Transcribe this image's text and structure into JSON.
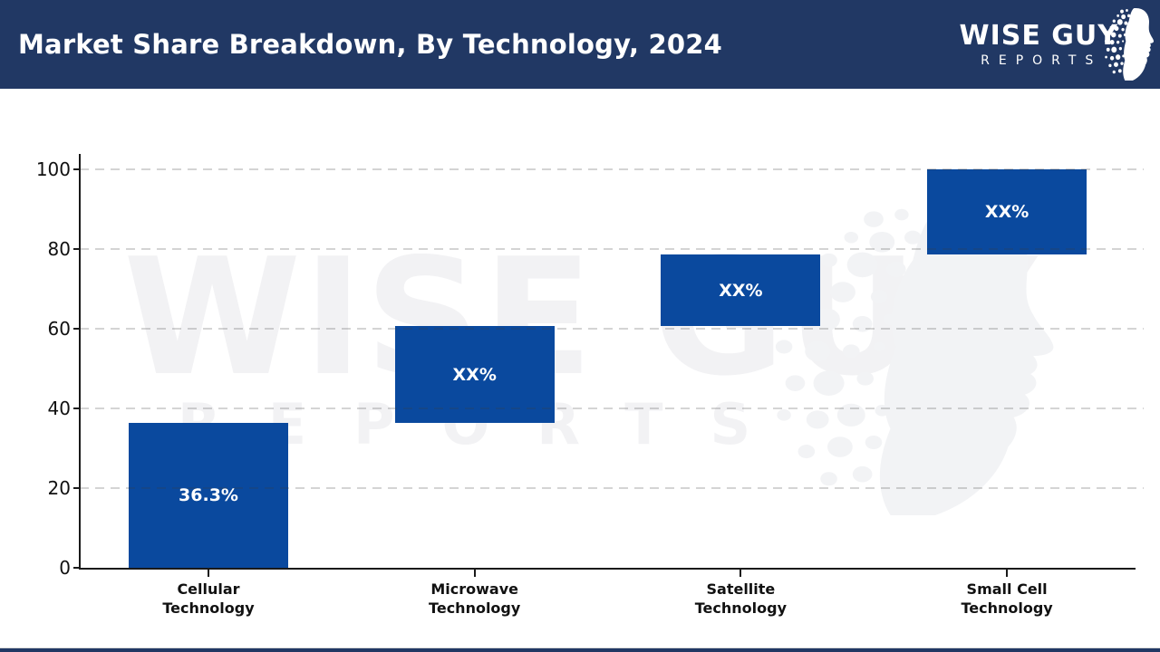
{
  "header": {
    "title": "Market Share Breakdown, By Technology, 2024",
    "logo": {
      "wordmark": "WISE GUY",
      "subtitle": "REPORTS",
      "face_icon": "wiseguy-face-icon"
    }
  },
  "watermark": {
    "wordmark": "WISE GUY",
    "subtitle": "REPORTS",
    "face_icon": "wiseguy-face-watermark-icon"
  },
  "chart_data": {
    "type": "bar",
    "subtype": "waterfall",
    "title": "Market Share Breakdown, By Technology, 2024",
    "xlabel": "",
    "ylabel": "",
    "ylim": [
      0,
      100
    ],
    "yticks": [
      0,
      20,
      40,
      60,
      80,
      100
    ],
    "grid": "horizontal-dashed",
    "legend": "none",
    "bar_color": "#0a499e",
    "bar_label_color": "#ffffff",
    "header_color": "#213864",
    "categories": [
      [
        "Cellular",
        "Technology"
      ],
      [
        "Microwave",
        "Technology"
      ],
      [
        "Satellite",
        "Technology"
      ],
      [
        "Small Cell",
        "Technology"
      ]
    ],
    "segments": [
      {
        "category": "Cellular Technology",
        "start": 0,
        "end": 36.3,
        "value": 36.3,
        "label": "36.3%"
      },
      {
        "category": "Microwave Technology",
        "start": 36.3,
        "end": 60.7,
        "value": 24.4,
        "label": "XX%"
      },
      {
        "category": "Satellite Technology",
        "start": 60.7,
        "end": 78.6,
        "value": 17.9,
        "label": "XX%"
      },
      {
        "category": "Small Cell Technology",
        "start": 78.6,
        "end": 100.0,
        "value": 21.4,
        "label": "XX%"
      }
    ]
  }
}
